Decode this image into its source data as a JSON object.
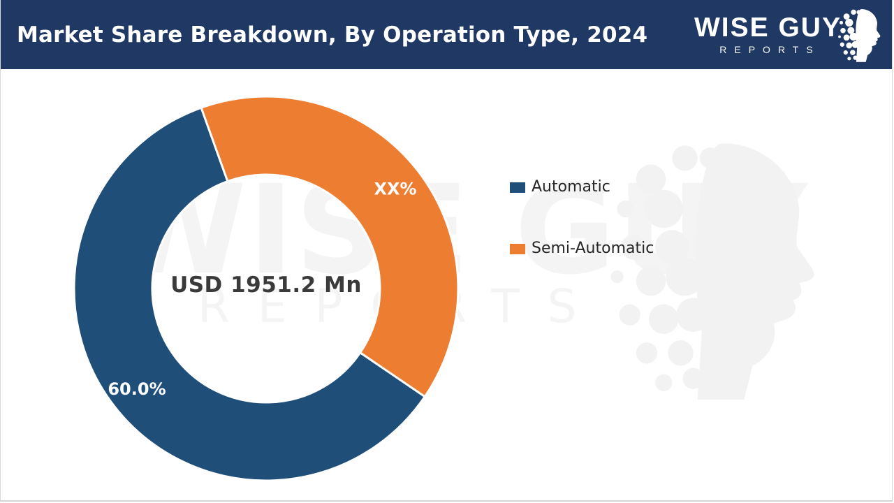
{
  "header": {
    "title": "Market Share Breakdown, By Operation Type, 2024",
    "logo": {
      "line1": "WISE GUY",
      "line2": "REPORTS"
    }
  },
  "chart_data": {
    "type": "pie",
    "subtype": "donut",
    "title": "Market Share Breakdown, By Operation Type, 2024",
    "center_label": "USD 1951.2 Mn",
    "start_angle_deg": -34.25,
    "direction": "clockwise",
    "segments": [
      {
        "label": "Automatic",
        "value_pct": 60.0,
        "display_label": "60.0%",
        "color": "#1f4e79"
      },
      {
        "label": "Semi-Automatic",
        "value_pct": 40.0,
        "display_label": "XX%",
        "color": "#ed7d31"
      }
    ],
    "legend": {
      "position": "right",
      "items": [
        "Automatic",
        "Semi-Automatic"
      ]
    }
  },
  "watermark": {
    "line1": "WISE GUY",
    "line2": "REPORTS"
  },
  "colors": {
    "header_bg": "#1f3864",
    "automatic_blue": "#1f4e79",
    "semi_automatic_orange": "#ed7d31",
    "title_text": "#ffffff",
    "center_text": "#3a3a3a",
    "legend_text": "#262626",
    "watermark_gray": "#f4f4f4",
    "wedge_divider": "#ffffff"
  }
}
